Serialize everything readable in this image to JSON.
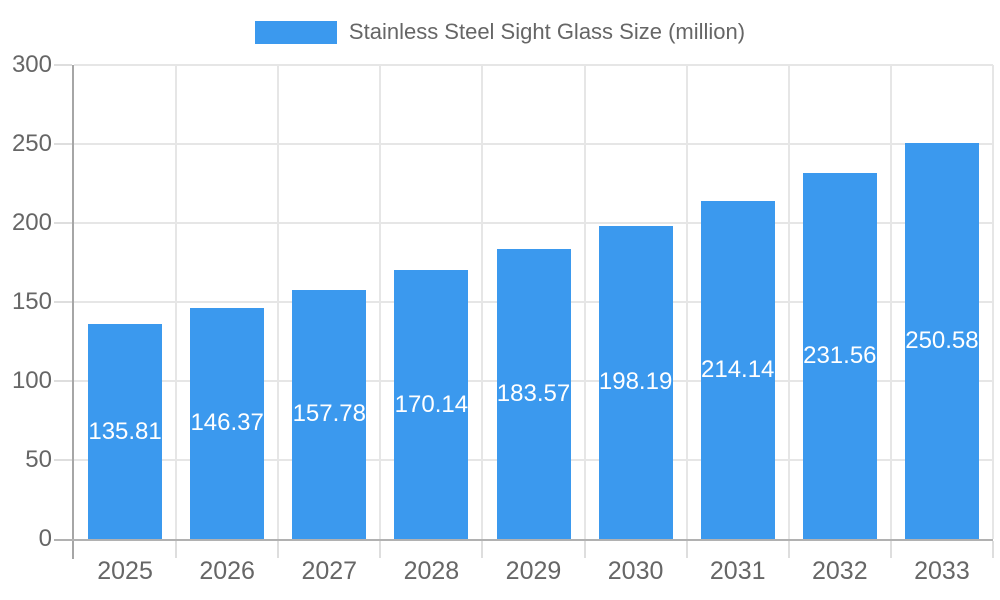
{
  "legend": {
    "label": "Stainless Steel Sight Glass Size (million)"
  },
  "colors": {
    "bar": "#3B99EE",
    "value_label": "#FFFFFF",
    "axis_text": "#666666",
    "grid": "#E6E6E6",
    "tick": "#DEDEDE",
    "y_axis_line": "#A6A6A6",
    "x_axis_line": "#B1B1B1",
    "background": "#FFFFFF"
  },
  "chart_data": {
    "type": "bar",
    "title": "Stainless Steel Sight Glass Size (million)",
    "series_name": "Stainless Steel Sight Glass Size (million)",
    "categories": [
      "2025",
      "2026",
      "2027",
      "2028",
      "2029",
      "2030",
      "2031",
      "2032",
      "2033"
    ],
    "values": [
      135.81,
      146.37,
      157.78,
      170.14,
      183.57,
      198.19,
      214.14,
      231.56,
      250.58
    ],
    "value_labels": [
      "135.81",
      "146.37",
      "157.78",
      "170.14",
      "183.57",
      "198.19",
      "214.14",
      "231.56",
      "250.58"
    ],
    "value_label_position": "inside-center",
    "xlabel": "",
    "ylabel": "",
    "ylim": [
      0,
      300
    ],
    "yticks": [
      0,
      50,
      100,
      150,
      200,
      250,
      300
    ],
    "grid": true,
    "legend_position": "top"
  }
}
